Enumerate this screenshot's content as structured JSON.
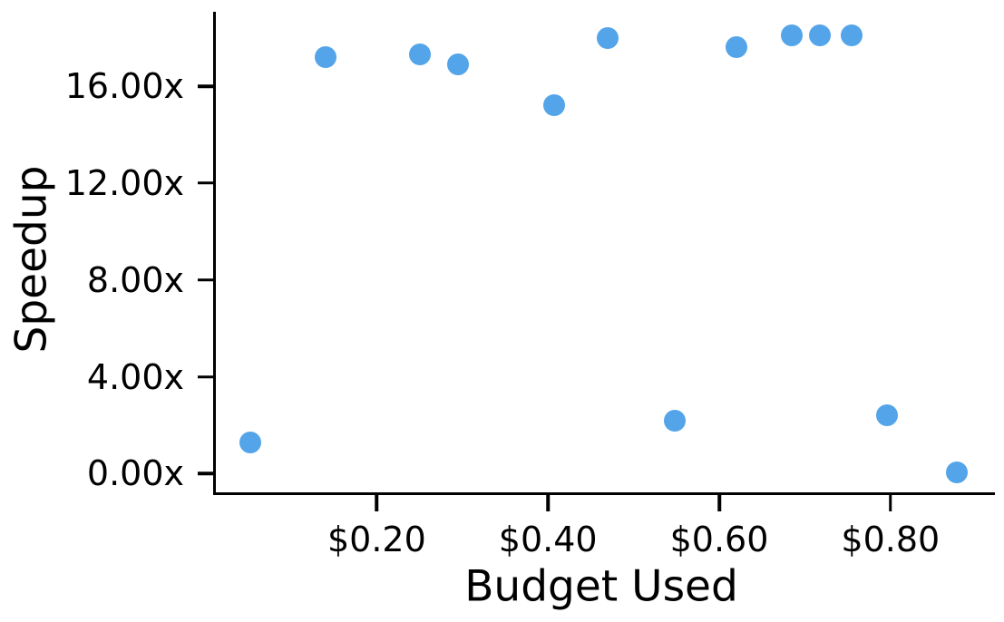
{
  "chart_data": {
    "type": "scatter",
    "title": "",
    "xlabel": "Budget Used",
    "ylabel": "Speedup",
    "xlim": [
      0.01,
      0.922
    ],
    "ylim": [
      -0.77,
      19.07
    ],
    "grid": false,
    "legend": false,
    "marker_color": "#53a4e8",
    "axis_color": "#000000",
    "x_ticks": {
      "values": [
        0.2,
        0.4,
        0.6,
        0.8
      ],
      "labels": [
        "$0.20",
        "$0.40",
        "$0.60",
        "$0.80"
      ]
    },
    "y_ticks": {
      "values": [
        0,
        4,
        8,
        12,
        16
      ],
      "labels": [
        "0.00x",
        "4.00x",
        "8.00x",
        "12.00x",
        "16.00x"
      ]
    },
    "points": [
      {
        "x": 0.052,
        "y": 1.3
      },
      {
        "x": 0.14,
        "y": 17.2
      },
      {
        "x": 0.25,
        "y": 17.3
      },
      {
        "x": 0.295,
        "y": 16.9
      },
      {
        "x": 0.407,
        "y": 15.2
      },
      {
        "x": 0.47,
        "y": 18.0
      },
      {
        "x": 0.548,
        "y": 2.2
      },
      {
        "x": 0.62,
        "y": 17.6
      },
      {
        "x": 0.685,
        "y": 18.1
      },
      {
        "x": 0.718,
        "y": 18.1
      },
      {
        "x": 0.755,
        "y": 18.1
      },
      {
        "x": 0.796,
        "y": 2.4
      },
      {
        "x": 0.877,
        "y": 0.05
      }
    ]
  }
}
